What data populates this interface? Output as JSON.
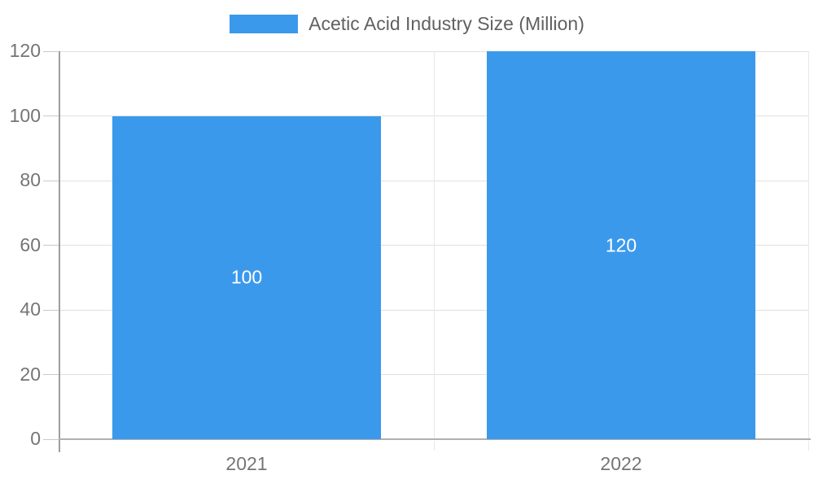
{
  "legend": {
    "label": "Acetic Acid Industry Size (Million)"
  },
  "chart_data": {
    "type": "bar",
    "title": "Acetic Acid Industry Size (Million)",
    "categories": [
      "2021",
      "2022"
    ],
    "values": [
      100,
      120
    ],
    "bar_labels": [
      "100",
      "120"
    ],
    "series": [
      {
        "name": "Acetic Acid Industry Size (Million)",
        "values": [
          100,
          120
        ]
      }
    ],
    "xlabel": "",
    "ylabel": "",
    "ylim": [
      0,
      120
    ],
    "ytick_interval": 20,
    "ytick_labels": [
      "0",
      "20",
      "40",
      "60",
      "80",
      "100",
      "120"
    ],
    "grid": true,
    "legend_position": "top-center",
    "colors": {
      "bar": "#3b99ec",
      "bar_label_text": "#ffffff",
      "legend_text": "#616161",
      "axis_text": "#757575",
      "gridline_h": "#e0e0e0",
      "gridline_v": "#e8e8e8",
      "tick": "#c9c9c9",
      "y_axis_line": "#9e9e9e",
      "x_axis_line": "#b0b0b0"
    }
  }
}
